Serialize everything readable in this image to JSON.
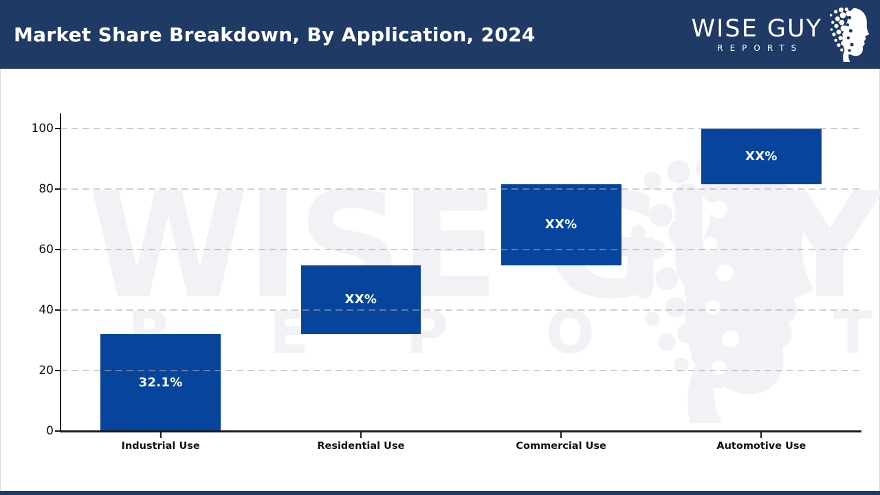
{
  "header": {
    "title": "Market Share Breakdown, By Application, 2024",
    "logo": {
      "line1": "WISE GUY",
      "line2": "REPORTS"
    }
  },
  "watermark": {
    "line1": "WISE GUY",
    "line2": "REPORTS",
    "letters_spaced": "R E P O R T S"
  },
  "colors": {
    "header_navy": "#203a66",
    "bar_blue": "#07459d",
    "grid_gray": "#d8d8d8",
    "watermark_gray": "#f0f2f5",
    "axis_black": "#1a1a1a",
    "bar_label_white": "#ffffff"
  },
  "chart_data": {
    "type": "bar",
    "subtype": "waterfall-stacked-progression",
    "title": "Market Share Breakdown, By Application, 2024",
    "categories": [
      "Industrial Use",
      "Residential Use",
      "Commercial Use",
      "Automotive Use"
    ],
    "series": [
      {
        "name": "Market Share (%)",
        "segments": [
          {
            "category": "Industrial Use",
            "base": 0,
            "top": 32.1,
            "value": 32.1,
            "label": "32.1%"
          },
          {
            "category": "Residential Use",
            "base": 32.1,
            "top": 54.8,
            "value": 22.7,
            "label": "XX%"
          },
          {
            "category": "Commercial Use",
            "base": 54.8,
            "top": 81.6,
            "value": 26.8,
            "label": "XX%"
          },
          {
            "category": "Automotive Use",
            "base": 81.6,
            "top": 100,
            "value": 18.4,
            "label": "XX%"
          }
        ]
      }
    ],
    "xlabel": "",
    "ylabel": "",
    "ylim": [
      0,
      105
    ],
    "yticks": [
      0,
      20,
      40,
      60,
      80,
      100
    ],
    "grid": "horizontal dashed, drawn above bars",
    "legend": "none"
  }
}
